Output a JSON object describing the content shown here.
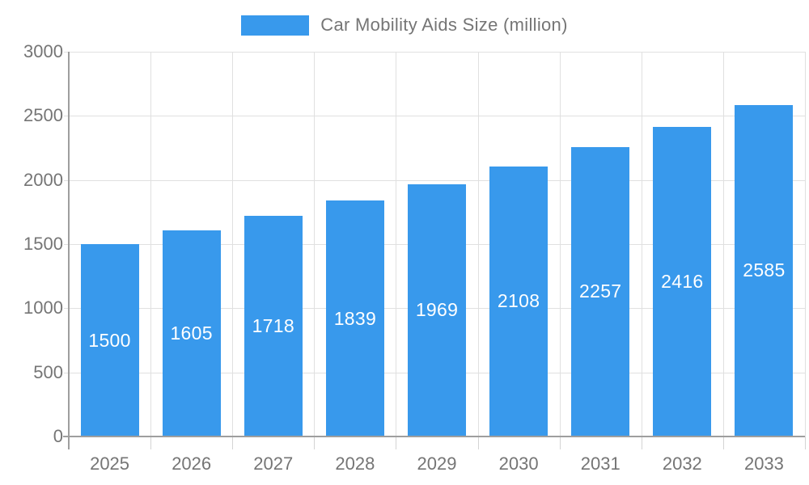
{
  "chart_data": {
    "type": "bar",
    "title": "Car Mobility Aids Size (million)",
    "categories": [
      "2025",
      "2026",
      "2027",
      "2028",
      "2029",
      "2030",
      "2031",
      "2032",
      "2033"
    ],
    "values": [
      1500,
      1605,
      1718,
      1839,
      1969,
      2108,
      2257,
      2416,
      2585
    ],
    "series": [
      {
        "name": "Car Mobility Aids Size (million)",
        "values": [
          1500,
          1605,
          1718,
          1839,
          1969,
          2108,
          2257,
          2416,
          2585
        ]
      }
    ],
    "xlabel": "",
    "ylabel": "",
    "ylim": [
      0,
      3000
    ],
    "yticks": [
      0,
      500,
      1000,
      1500,
      2000,
      2500,
      3000
    ],
    "grid": "on",
    "legend_position": "top-center",
    "value_labels": "inside-center-white",
    "colors": {
      "bar": "#3899EC",
      "grid": "#E0E0E0",
      "axis": "#9E9E9E",
      "tick_text": "#757575",
      "value_text": "#FFFFFF",
      "background": "#FFFFFF"
    }
  }
}
